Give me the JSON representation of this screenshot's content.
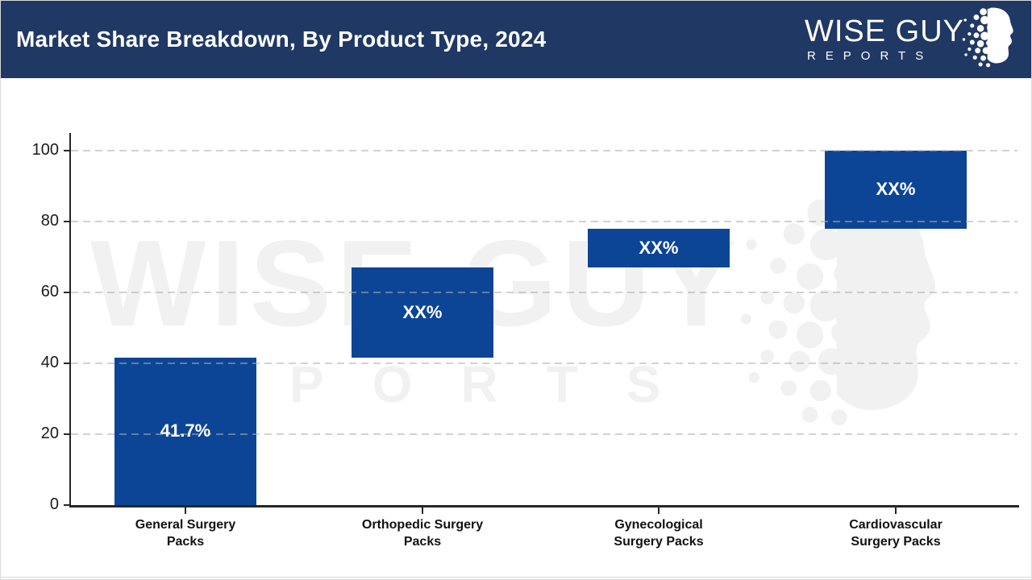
{
  "header": {
    "title": "Market Share Breakdown, By Product Type, 2024",
    "bg_color": "#1f3864",
    "logo": {
      "line1": "WISE GUY",
      "line2": "REPORTS",
      "icon": "dotted-head-profile"
    }
  },
  "watermark": {
    "line1": "WISE GUY",
    "line2": "REPORTS",
    "color": "#f1f1f1"
  },
  "chart_data": {
    "type": "bar",
    "variant": "waterfall",
    "title": "Market Share Breakdown, By Product Type, 2024",
    "categories": [
      "General Surgery\nPacks",
      "Orthopedic Surgery\nPacks",
      "Gynecological\nSurgery Packs",
      "Cardiovascular\nSurgery Packs"
    ],
    "series": [
      {
        "name": "Market Share",
        "segments": [
          {
            "category": "General Surgery Packs",
            "start": 0,
            "end": 41.7,
            "label": "41.7%"
          },
          {
            "category": "Orthopedic Surgery Packs",
            "start": 41.7,
            "end": 67,
            "label": "XX%"
          },
          {
            "category": "Gynecological Surgery Packs",
            "start": 67,
            "end": 78,
            "label": "XX%"
          },
          {
            "category": "Cardiovascular Surgery Packs",
            "start": 78,
            "end": 100,
            "label": "XX%"
          }
        ]
      }
    ],
    "ylim": [
      0,
      100
    ],
    "yticks": [
      0,
      20,
      40,
      60,
      80,
      100
    ],
    "xlabel": "",
    "ylabel": "",
    "grid": "horizontal-dashed",
    "legend": "none",
    "bar_color": "#0d4596",
    "bar_label_color": "#ffffff",
    "axis_color": "#262626",
    "grid_color": "#d9d9d9"
  }
}
